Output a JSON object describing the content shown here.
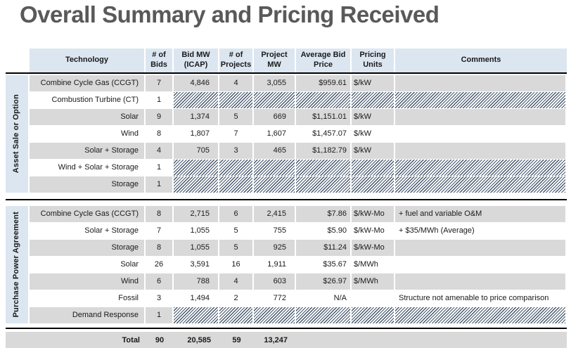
{
  "page": {
    "title": "Overall Summary and Pricing Received"
  },
  "colors": {
    "title_color": "#595959",
    "header_bg": "#dce6f1",
    "band_bg": "#dce6f1",
    "row_alt_bg": "#d9d9d9",
    "total_bg": "#d9d9d9",
    "hatch": "#45566c"
  },
  "table": {
    "columns": {
      "technology": "Technology",
      "bids": "# of\nBids",
      "bid_mw": "Bid MW\n(ICAP)",
      "projects": "# of\nProjects",
      "project_mw": "Project\nMW",
      "avg_price": "Average Bid\nPrice",
      "units": "Pricing\nUnits",
      "comments": "Comments"
    },
    "sections": [
      {
        "label": "Asset Sale or Option",
        "rows": [
          {
            "technology": "Combine Cycle Gas (CCGT)",
            "bids": "7",
            "bid_mw": "4,846",
            "projects": "4",
            "project_mw": "3,055",
            "avg_price": "$959.61",
            "units": "$/kW",
            "comment": "",
            "shaded": true,
            "hatched": false
          },
          {
            "technology": "Combustion Turbine (CT)",
            "bids": "1",
            "shaded": false,
            "hatched": true
          },
          {
            "technology": "Solar",
            "bids": "9",
            "bid_mw": "1,374",
            "projects": "5",
            "project_mw": "669",
            "avg_price": "$1,151.01",
            "units": "$/kW",
            "comment": "",
            "shaded": true,
            "hatched": false
          },
          {
            "technology": "Wind",
            "bids": "8",
            "bid_mw": "1,807",
            "projects": "7",
            "project_mw": "1,607",
            "avg_price": "$1,457.07",
            "units": "$/kW",
            "comment": "",
            "shaded": false,
            "hatched": false
          },
          {
            "technology": "Solar + Storage",
            "bids": "4",
            "bid_mw": "705",
            "projects": "3",
            "project_mw": "465",
            "avg_price": "$1,182.79",
            "units": "$/kW",
            "comment": "",
            "shaded": true,
            "hatched": false
          },
          {
            "technology": "Wind + Solar + Storage",
            "bids": "1",
            "shaded": false,
            "hatched": true
          },
          {
            "technology": "Storage",
            "bids": "1",
            "shaded": true,
            "hatched": true
          }
        ]
      },
      {
        "label": "Purchase Power\nAgreement",
        "rows": [
          {
            "technology": "Combine Cycle Gas (CCGT)",
            "bids": "8",
            "bid_mw": "2,715",
            "projects": "6",
            "project_mw": "2,415",
            "avg_price": "$7.86",
            "units": "$/kW-Mo",
            "comment": "+ fuel and variable O&M",
            "shaded": true,
            "hatched": false
          },
          {
            "technology": "Solar + Storage",
            "bids": "7",
            "bid_mw": "1,055",
            "projects": "5",
            "project_mw": "755",
            "avg_price": "$5.90",
            "units": "$/kW-Mo",
            "comment": "+ $35/MWh (Average)",
            "shaded": false,
            "hatched": false
          },
          {
            "technology": "Storage",
            "bids": "8",
            "bid_mw": "1,055",
            "projects": "5",
            "project_mw": "925",
            "avg_price": "$11.24",
            "units": "$/kW-Mo",
            "comment": "",
            "shaded": true,
            "hatched": false
          },
          {
            "technology": "Solar",
            "bids": "26",
            "bid_mw": "3,591",
            "projects": "16",
            "project_mw": "1,911",
            "avg_price": "$35.67",
            "units": "$/MWh",
            "comment": "",
            "shaded": false,
            "hatched": false
          },
          {
            "technology": "Wind",
            "bids": "6",
            "bid_mw": "788",
            "projects": "4",
            "project_mw": "603",
            "avg_price": "$26.97",
            "units": "$/MWh",
            "comment": "",
            "shaded": true,
            "hatched": false
          },
          {
            "technology": "Fossil",
            "bids": "3",
            "bid_mw": "1,494",
            "projects": "2",
            "project_mw": "772",
            "avg_price": "N/A",
            "units": "",
            "comment": "Structure not amenable to price comparison",
            "shaded": false,
            "hatched": false
          },
          {
            "technology": "Demand Response",
            "bids": "1",
            "shaded": true,
            "hatched": true
          }
        ]
      }
    ],
    "total": {
      "label": "Total",
      "bids": "90",
      "bid_mw": "20,585",
      "projects": "59",
      "project_mw": "13,247"
    }
  }
}
